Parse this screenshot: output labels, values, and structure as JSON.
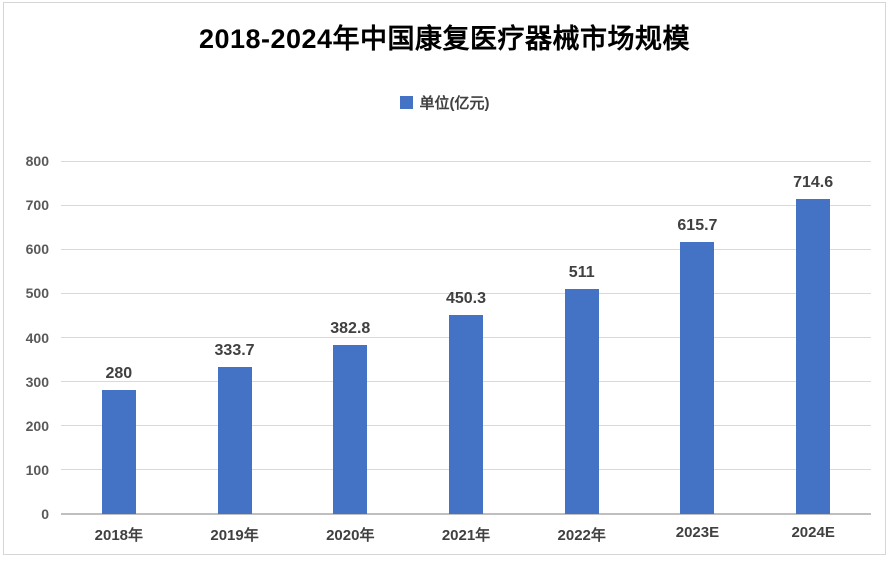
{
  "chart_data": {
    "type": "bar",
    "title": "2018-2024年中国康复医疗器械市场规模",
    "legend_label": "单位(亿元)",
    "legend_position": "top-center",
    "categories": [
      "2018年",
      "2019年",
      "2020年",
      "2021年",
      "2022年",
      "2023E",
      "2024E"
    ],
    "values": [
      280,
      333.7,
      382.8,
      450.3,
      511,
      615.7,
      714.6
    ],
    "data_labels": [
      "280",
      "333.7",
      "382.8",
      "450.3",
      "511",
      "615.7",
      "714.6"
    ],
    "xlabel": "",
    "ylabel": "",
    "ylim": [
      0,
      800
    ],
    "ytick_interval": 100,
    "yticks": [
      0,
      100,
      200,
      300,
      400,
      500,
      600,
      700,
      800
    ],
    "grid": true,
    "colors": {
      "bar": "#4472c4",
      "gridline": "#d9d9d9",
      "axis_line": "#bfbfbf",
      "title_text": "#000000",
      "data_label_text": "#404040",
      "tick_text": "#595959",
      "frame_border": "#d6d6d6"
    }
  }
}
